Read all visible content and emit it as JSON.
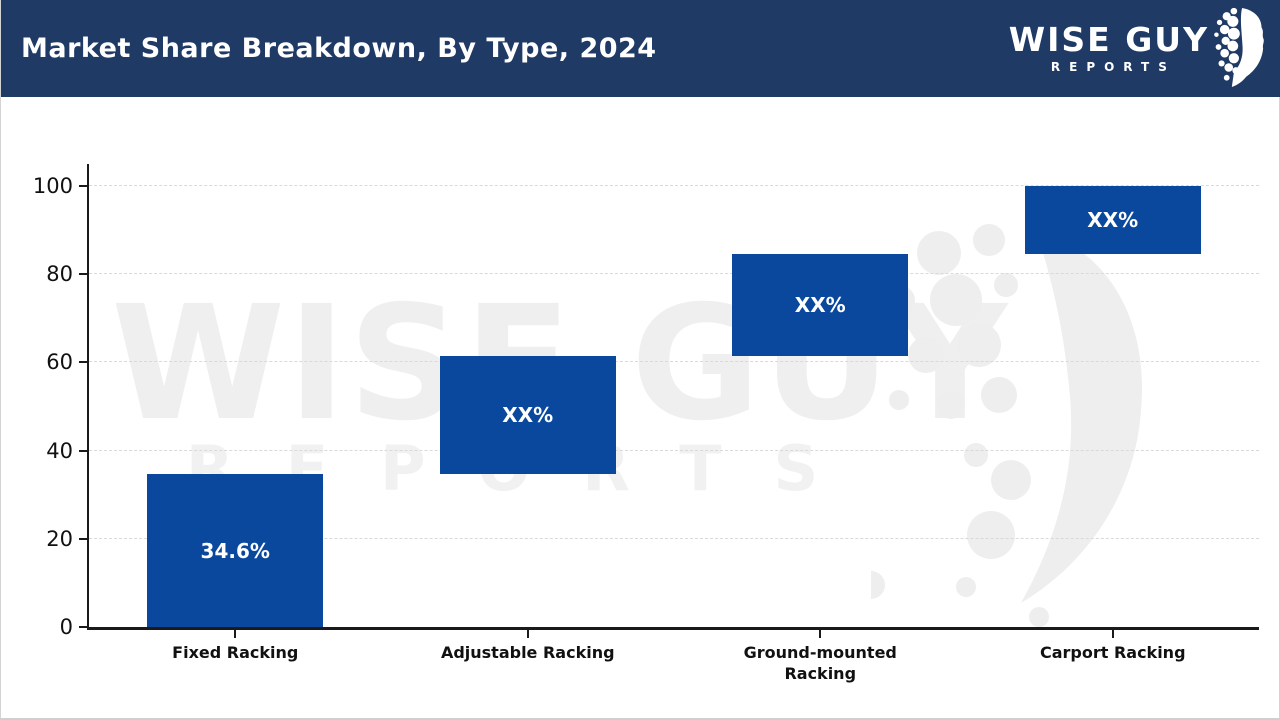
{
  "header": {
    "title": "Market Share Breakdown, By Type, 2024",
    "bg_color": "#203a66",
    "logo": {
      "line1": "WISE GUY",
      "line2": "REPORTS"
    }
  },
  "watermark": {
    "line1": "WISE GUY",
    "line2": "REPORTS"
  },
  "chart_data": {
    "type": "bar",
    "variant": "waterfall",
    "title": "Market Share Breakdown, By Type, 2024",
    "categories": [
      "Fixed Racking",
      "Adjustable Racking",
      "Ground-mounted Racking",
      "Carport Racking"
    ],
    "segments": [
      {
        "category": "Fixed Racking",
        "start": 0,
        "end": 34.6,
        "label": "34.6%"
      },
      {
        "category": "Adjustable Racking",
        "start": 34.6,
        "end": 61.4,
        "label": "XX%"
      },
      {
        "category": "Ground-mounted Racking",
        "start": 61.4,
        "end": 84.6,
        "label": "XX%"
      },
      {
        "category": "Carport Racking",
        "start": 84.6,
        "end": 100,
        "label": "XX%"
      }
    ],
    "values": [
      34.6,
      26.8,
      23.2,
      15.4
    ],
    "cumulative": [
      34.6,
      61.4,
      84.6,
      100
    ],
    "yticks": [
      0,
      20,
      40,
      60,
      80,
      100
    ],
    "ylim": [
      0,
      100
    ],
    "xlabel": "",
    "ylabel": "",
    "grid": "horizontal-dashed",
    "legend": "none",
    "bar_color": "#0a489e",
    "bar_label_color": "#ffffff",
    "axis_color": "#1a1a1a",
    "gridline_color": "#d9d9d9",
    "watermark_color": "#efefef"
  }
}
